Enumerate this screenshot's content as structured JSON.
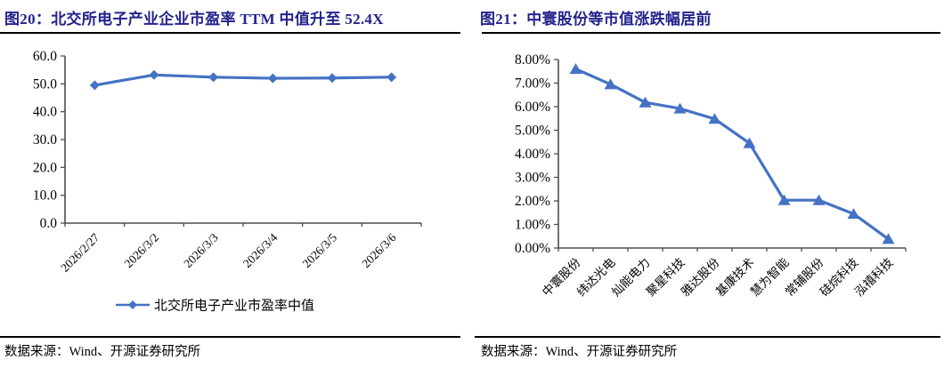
{
  "theme": {
    "title_color": "#23238C",
    "series_color": "#4472C4",
    "axis_color": "#4D4D4D",
    "text_color": "#000000",
    "rule_color": "#000000",
    "background": "#FFFFFF"
  },
  "figures": [
    {
      "title": "图20：北交所电子产业企业市盈率 TTM 中值升至 52.4X",
      "source": "数据来源：Wind、开源证券研究所",
      "chart_data": {
        "type": "line",
        "categories": [
          "2026/2/27",
          "2026/3/2",
          "2026/3/3",
          "2026/3/4",
          "2026/3/5",
          "2026/3/6"
        ],
        "series": [
          {
            "name": "北交所电子产业市盈率中值",
            "values": [
              49.5,
              53.2,
              52.4,
              52.0,
              52.1,
              52.4
            ]
          }
        ],
        "ylim": [
          0,
          60
        ],
        "ytick_step": 10,
        "ytick_format": "fixed1",
        "marker": "diamond",
        "grid": false,
        "legend": {
          "position": "bottom",
          "label": "北交所电子产业市盈率中值"
        }
      }
    },
    {
      "title": "图21：中寰股份等市值涨跌幅居前",
      "source": "数据来源：Wind、开源证券研究所",
      "chart_data": {
        "type": "line",
        "categories": [
          "中寰股份",
          "纬达光电",
          "灿能电力",
          "聚星科技",
          "雅达股份",
          "基康技术",
          "慧为智能",
          "常辅股份",
          "硅烷科技",
          "泓禧科技"
        ],
        "series": [
          {
            "values": [
              7.6,
              6.95,
              6.18,
              5.92,
              5.48,
              4.45,
              2.03,
              2.03,
              1.45,
              0.38
            ]
          }
        ],
        "ylim": [
          0,
          8
        ],
        "ytick_step": 1,
        "ytick_format": "percent2",
        "marker": "triangle",
        "grid": false,
        "legend": null
      }
    }
  ]
}
